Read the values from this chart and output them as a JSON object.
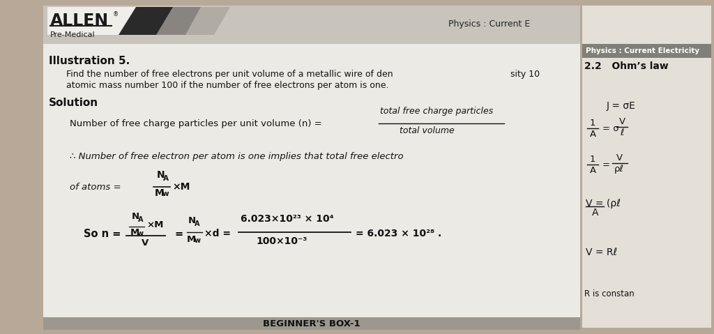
{
  "bg_outer": "#b8a898",
  "bg_page": "#e8e4dc",
  "bg_header": "#b0aca4",
  "bg_right_header": "#888480",
  "bg_footer": "#a8a49c",
  "allen_text": "ALLEN",
  "allen_super": "®",
  "pre_medical": "Pre-Medical",
  "phys_header": "Physics : Current E",
  "illus": "Illustration 5.",
  "prob1": "Find the number of free electrons per unit volume of a metallic wire of den",
  "prob2": "atomic mass number 100 if the number of free electrons per atom is one.",
  "solution": "Solution",
  "formula_prefix": "Number of free charge particles per unit volume (n) =",
  "frac_num": "total free charge particles",
  "frac_den": "total volume",
  "therefore_line": "∴ Number of free electron per atom is one implies that total free electro",
  "of_atoms": "of atoms =",
  "footer_text": "BEGINNER'S BOX-1",
  "right_header": "Physics : Current Electricity",
  "right_22": "2.2   Ohm’s law",
  "right_J": "J = σE",
  "right_Rconst": "R is constan"
}
